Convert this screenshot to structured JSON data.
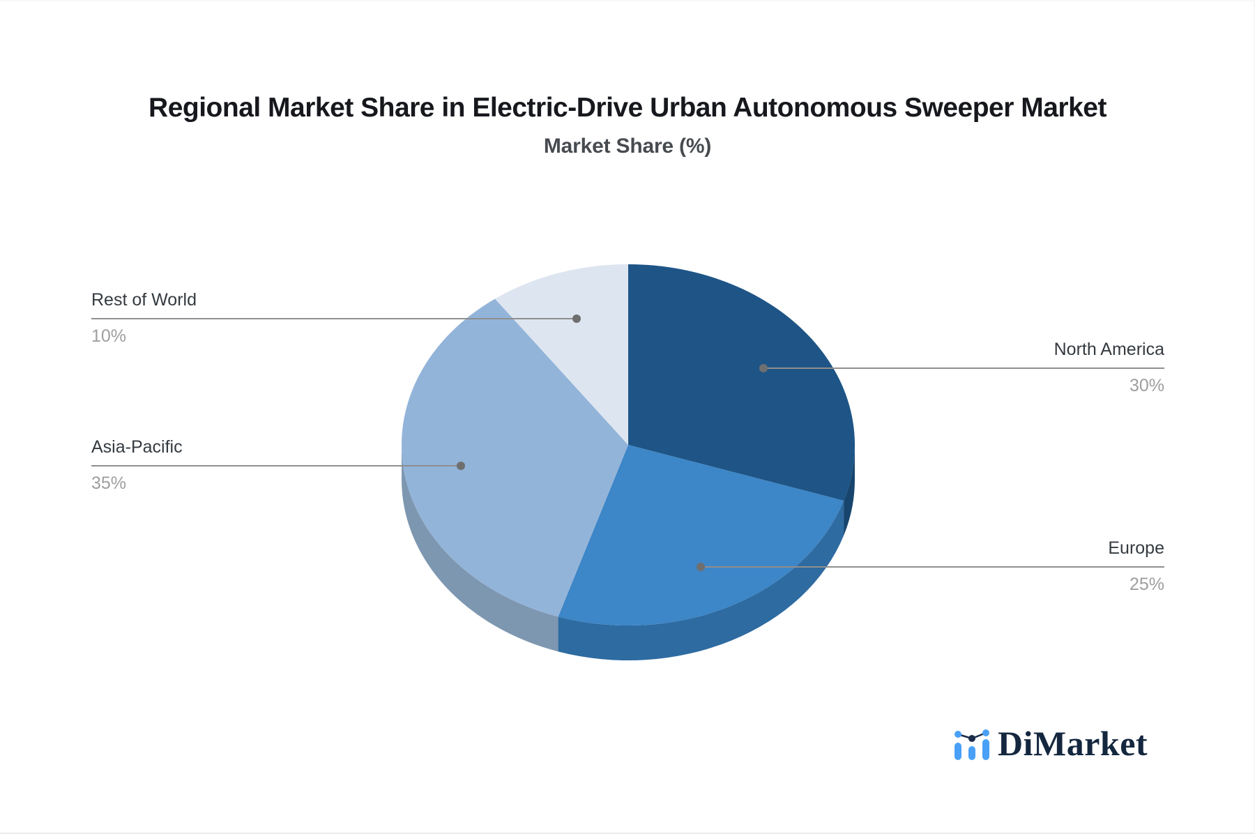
{
  "header": {
    "title": "Regional Market Share in Electric-Drive Urban Autonomous Sweeper Market",
    "subtitle": "Market Share (%)"
  },
  "chart_data": {
    "type": "pie",
    "style": "3d",
    "title": "Regional Market Share in Electric-Drive Urban Autonomous Sweeper Market",
    "subtitle": "Market Share (%)",
    "unit": "%",
    "start_angle": "12-oclock",
    "direction": "clockwise",
    "legend_position": "callout-labels",
    "categories": [
      "North America",
      "Europe",
      "Asia-Pacific",
      "Rest of World"
    ],
    "values": [
      30,
      25,
      35,
      10
    ],
    "slices": [
      {
        "label": "North America",
        "value": 30,
        "display": "30%",
        "color": "#1e5586",
        "side_color": "#17456e",
        "callout_side": "right"
      },
      {
        "label": "Europe",
        "value": 25,
        "display": "25%",
        "color": "#3d86c7",
        "side_color": "#2e6ba1",
        "callout_side": "right"
      },
      {
        "label": "Asia-Pacific",
        "value": 35,
        "display": "35%",
        "color": "#93b4d9",
        "side_color": "#7e97b1",
        "callout_side": "left"
      },
      {
        "label": "Rest of World",
        "value": 10,
        "display": "10%",
        "color": "#dde5f0",
        "side_color": "#c3cedd",
        "callout_side": "left"
      }
    ]
  },
  "branding": {
    "logo_text": "DiMarket",
    "logo_icon": "bar-line-chart-logo-icon",
    "logo_text_color": "#14273f",
    "logo_accent_color": "#4aa0f6",
    "logo_line_color": "#1b2b4a"
  },
  "colors": {
    "background": "#ffffff",
    "label_text": "#343a40",
    "percent_text": "#9e9e9e",
    "connector_line": "#8f8f8f",
    "connector_dot": "#6f6f6f"
  }
}
